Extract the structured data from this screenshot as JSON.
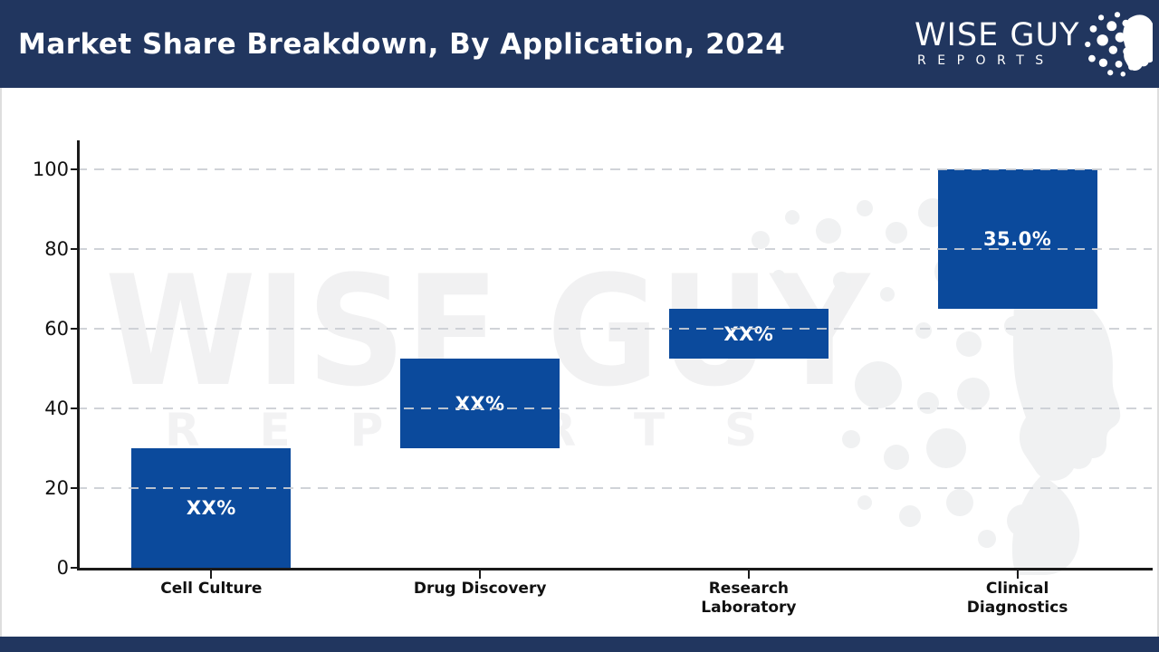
{
  "header": {
    "title": "Market Share Breakdown, By Application, 2024",
    "logo": {
      "line1": "WISE GUY",
      "line2": "REPORTS"
    }
  },
  "watermark": {
    "line1": "WISE GUY",
    "line2": "REPORTS"
  },
  "chart_data": {
    "type": "bar",
    "subtype": "floating-segment-waterfall",
    "title": "Market Share Breakdown, By Application, 2024",
    "categories": [
      "Cell Culture",
      "Drug Discovery",
      "Research Laboratory",
      "Clinical Diagnostics"
    ],
    "categories_wrapped": [
      [
        "Cell Culture"
      ],
      [
        "Drug Discovery"
      ],
      [
        "Research",
        "Laboratory"
      ],
      [
        "Clinical",
        "Diagnostics"
      ]
    ],
    "segments": [
      {
        "category": "Cell Culture",
        "start": 0,
        "end": 30,
        "label": "XX%"
      },
      {
        "category": "Drug Discovery",
        "start": 30,
        "end": 52.5,
        "label": "XX%"
      },
      {
        "category": "Research Laboratory",
        "start": 52.5,
        "end": 65,
        "label": "XX%"
      },
      {
        "category": "Clinical Diagnostics",
        "start": 65,
        "end": 100,
        "label": "35.0%"
      }
    ],
    "yticks": [
      0,
      20,
      40,
      60,
      80,
      100
    ],
    "ylim": [
      0,
      107
    ],
    "xlabel": "",
    "ylabel": "",
    "grid": "dashed-horizontal-over-bars",
    "legend": "none"
  },
  "colors": {
    "header_bg": "#21365f",
    "footer_bg": "#21365f",
    "bar": "#0b4a9c",
    "bar_label": "#ffffff",
    "grid": "#d4d6da",
    "axis": "#1a1a1a",
    "watermark": "#f1f1f2",
    "background": "#ffffff"
  }
}
